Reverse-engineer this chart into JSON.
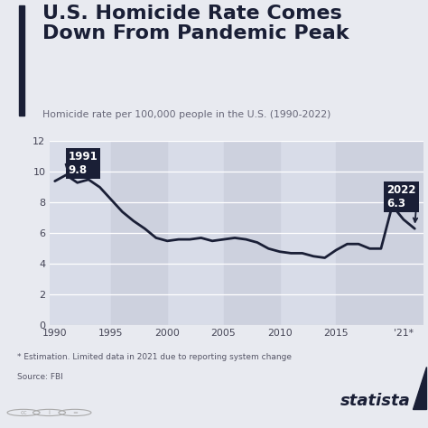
{
  "title_line1": "U.S. Homicide Rate Comes",
  "title_line2": "Down From Pandemic Peak",
  "subtitle": "Homicide rate per 100,000 people in the U.S. (1990-2022)",
  "footnote1": "* Estimation. Limited data in 2021 due to reporting system change",
  "footnote2": "Source: FBI",
  "years": [
    1990,
    1991,
    1992,
    1993,
    1994,
    1995,
    1996,
    1997,
    1998,
    1999,
    2000,
    2001,
    2002,
    2003,
    2004,
    2005,
    2006,
    2007,
    2008,
    2009,
    2010,
    2011,
    2012,
    2013,
    2014,
    2015,
    2016,
    2017,
    2018,
    2019,
    2020,
    2021,
    2022
  ],
  "values": [
    9.4,
    9.8,
    9.3,
    9.5,
    9.0,
    8.2,
    7.4,
    6.8,
    6.3,
    5.7,
    5.5,
    5.6,
    5.6,
    5.7,
    5.5,
    5.6,
    5.7,
    5.6,
    5.4,
    5.0,
    4.8,
    4.7,
    4.7,
    4.5,
    4.4,
    4.9,
    5.3,
    5.3,
    5.0,
    5.0,
    7.8,
    6.9,
    6.3
  ],
  "line_color": "#1a1f36",
  "bg_color": "#e8eaf0",
  "plot_bg_color": "#d8dce8",
  "band_color_alt": "#cdd1de",
  "title_color": "#1a1f36",
  "subtitle_color": "#666677",
  "annotation_bg": "#1a1f36",
  "annotation_text_color": "#ffffff",
  "ylim": [
    0,
    12
  ],
  "yticks": [
    0,
    2,
    4,
    6,
    8,
    10,
    12
  ],
  "xtick_labels": [
    "1990",
    "1995",
    "2000",
    "2005",
    "2010",
    "2015",
    "'21*"
  ],
  "xtick_positions": [
    1990,
    1995,
    2000,
    2005,
    2010,
    2015,
    2021
  ],
  "accent_bar_color": "#1a1f36",
  "statista_color": "#1a1f36"
}
